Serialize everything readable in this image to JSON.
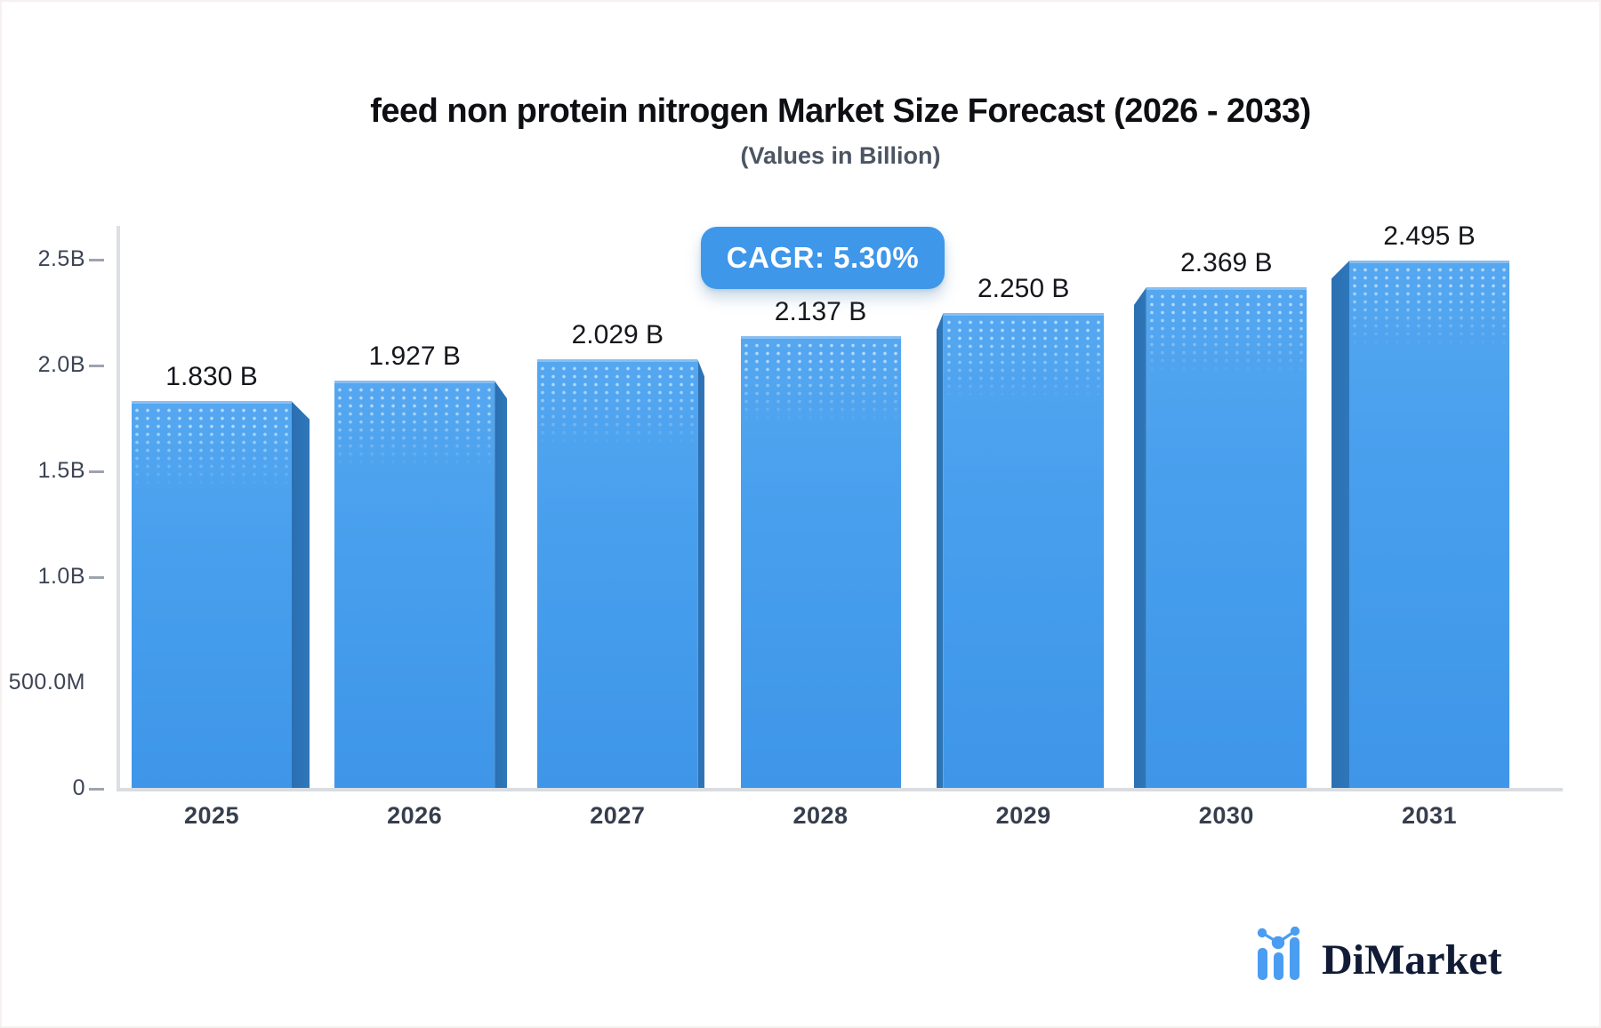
{
  "page": {
    "title": "feed non protein nitrogen Market Size Forecast (2026 - 2033)",
    "subtitle": "(Values in Billion)"
  },
  "badge": {
    "label": "CAGR: 5.30%"
  },
  "logo": {
    "name": "DiMarket",
    "icon": "bar-line-chart-icon"
  },
  "colors": {
    "bar_face_top": "#55A7F0",
    "bar_face_bottom": "#3F96E9",
    "bar_side": "#2C73B5",
    "badge_bg": "#3E97E9",
    "badge_text": "#FFFFFF",
    "axis_line": "#DADDE2",
    "tick_mark": "#9EA4AC",
    "axis_label_color": "#3C4454",
    "value_label_color": "#15171C",
    "logo_text_color": "#111B36",
    "logo_icon_color": "#4A9DF0"
  },
  "chart_data": {
    "type": "bar",
    "title": "feed non protein nitrogen Market Size Forecast (2026 - 2033)",
    "subtitle": "(Values in Billion)",
    "unit": "Billion",
    "cagr": "5.30%",
    "categories": [
      "2025",
      "2026",
      "2027",
      "2028",
      "2029",
      "2030",
      "2031"
    ],
    "values": [
      1.83,
      1.927,
      2.029,
      2.137,
      2.25,
      2.369,
      2.495
    ],
    "value_labels": [
      "1.830 B",
      "1.927 B",
      "2.029 B",
      "2.137 B",
      "2.250 B",
      "2.369 B",
      "2.495 B"
    ],
    "ylim": [
      0,
      2.5
    ],
    "y_ticks": [
      {
        "label": "2.5B",
        "value": 2.5,
        "dash": true
      },
      {
        "label": "2.0B",
        "value": 2.0,
        "dash": true
      },
      {
        "label": "1.5B",
        "value": 1.5,
        "dash": true
      },
      {
        "label": "1.0B",
        "value": 1.0,
        "dash": true
      },
      {
        "label": "500.0M",
        "value": 0.5,
        "dash": false
      },
      {
        "label": "0",
        "value": 0.0,
        "dash": true
      }
    ],
    "grid": false,
    "legend": false
  }
}
